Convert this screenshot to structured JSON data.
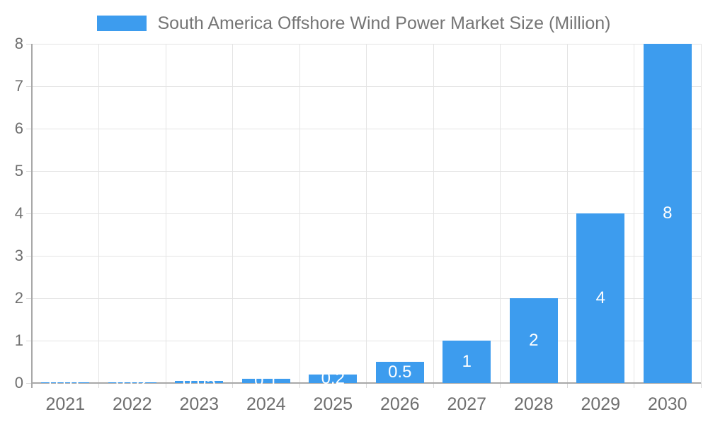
{
  "legend": {
    "label": "South America Offshore Wind Power Market Size (Million)"
  },
  "chart_data": {
    "type": "bar",
    "title": "South America Offshore Wind Power Market Size (Million)",
    "categories": [
      "2021",
      "2022",
      "2023",
      "2024",
      "2025",
      "2026",
      "2027",
      "2028",
      "2029",
      "2030"
    ],
    "values": [
      0.01,
      0.02,
      0.05,
      0.1,
      0.2,
      0.5,
      1,
      2,
      4,
      8
    ],
    "value_labels": [
      "0.01",
      "0.02",
      "0.05",
      "0.1",
      "0.2",
      "0.5",
      "1",
      "2",
      "4",
      "8"
    ],
    "xlabel": "",
    "ylabel": "",
    "ylim": [
      0,
      8
    ],
    "y_ticks": [
      0,
      1,
      2,
      3,
      4,
      5,
      6,
      7,
      8
    ],
    "grid": "on",
    "legend_position": "top",
    "colors": {
      "bar": "#3D9CEE",
      "grid": "#E4E4E4",
      "tick": "#D9D9D9",
      "axis": "#A8A8A8",
      "axis_text": "#6F6F6F",
      "legend_text": "#757575",
      "value_label": "#FFFFFF",
      "background": "#FFFFFF"
    }
  }
}
